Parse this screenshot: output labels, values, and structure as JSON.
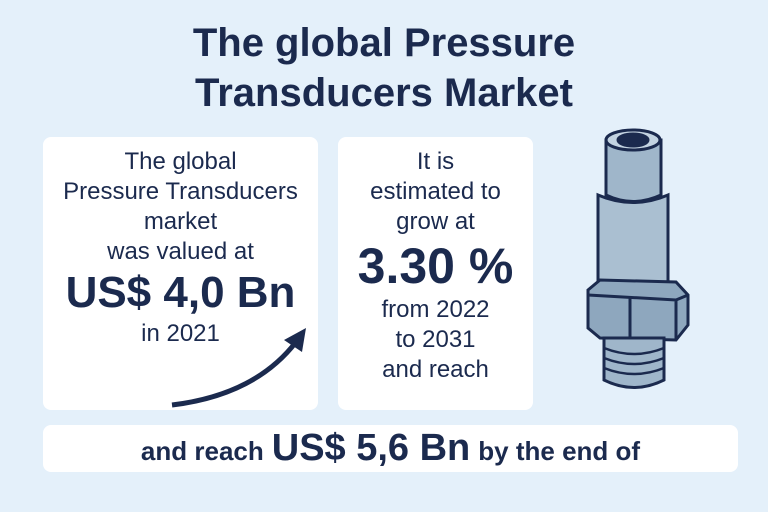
{
  "title": [
    "The global Pressure",
    "Transducers Market"
  ],
  "valuation_card": [
    "The global",
    "Pressure Transducers",
    "market",
    "was valued at",
    "US$ 4,0 Bn",
    "in 2021"
  ],
  "growth_card": [
    "It is",
    "estimated to",
    "grow at",
    "3.30 %",
    "from 2022",
    "to 2031",
    "and reach"
  ],
  "banner": [
    "and reach",
    "US$ 5,6 Bn",
    "by the end of"
  ]
}
